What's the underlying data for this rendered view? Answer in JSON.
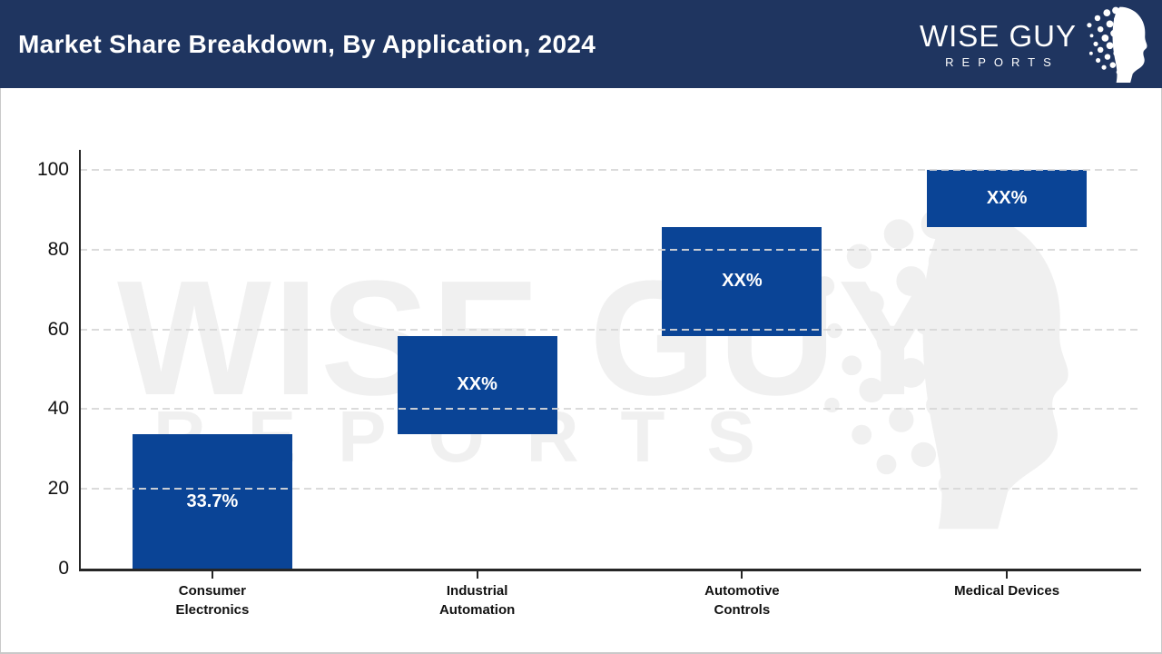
{
  "header": {
    "title": "Market Share Breakdown, By Application, 2024",
    "logo": {
      "line1": "WISE GUY",
      "line2": "REPORTS"
    }
  },
  "watermark": {
    "line1": "WISE GUY",
    "line2": "REPORTS"
  },
  "chart_data": {
    "type": "bar",
    "subtype": "waterfall",
    "title": "Market Share Breakdown, By Application, 2024",
    "categories": [
      "Consumer\nElectronics",
      "Industrial\nAutomation",
      "Automotive\nControls",
      "Medical Devices"
    ],
    "series": [
      {
        "name": "Market share (%)",
        "segments": [
          {
            "category": "Consumer Electronics",
            "start": 0,
            "end": 33.7,
            "label": "33.7%"
          },
          {
            "category": "Industrial Automation",
            "start": 33.7,
            "end": 58.4,
            "label": "XX%"
          },
          {
            "category": "Automotive Controls",
            "start": 58.4,
            "end": 85.6,
            "label": "XX%"
          },
          {
            "category": "Medical Devices",
            "start": 85.6,
            "end": 100,
            "label": "XX%"
          }
        ]
      }
    ],
    "ylim": [
      0,
      100
    ],
    "yticks": [
      0,
      20,
      40,
      60,
      80,
      100
    ],
    "xlabel": "",
    "ylabel": "",
    "grid": {
      "horizontal": true,
      "style": "dashed"
    },
    "legend": "none"
  },
  "colors": {
    "header_bg": "#1f3560",
    "bar": "#0a4496",
    "bar_label_text": "#ffffff",
    "grid": "#d8d8d8",
    "axis": "#262626",
    "watermark": "#f0f0f0",
    "page_border": "#c9c9c9"
  }
}
